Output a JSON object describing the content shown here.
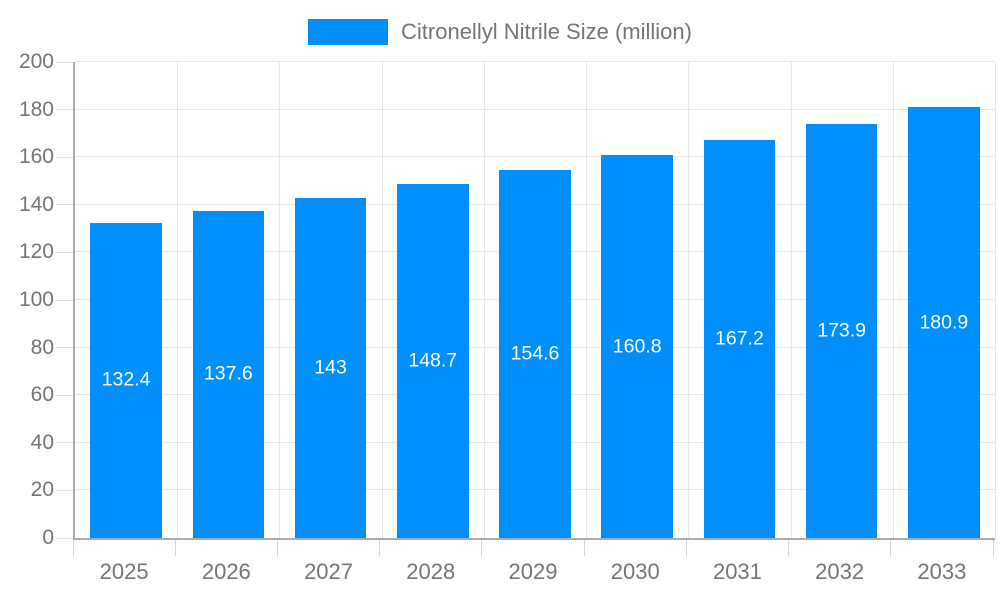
{
  "legend": {
    "label": "Citronellyl Nitrile Size (million)",
    "swatch_color": "#008FFB"
  },
  "chart_data": {
    "type": "bar",
    "title": "Citronellyl Nitrile Size (million)",
    "series_name": "Citronellyl Nitrile Size (million)",
    "categories": [
      "2025",
      "2026",
      "2027",
      "2028",
      "2029",
      "2030",
      "2031",
      "2032",
      "2033"
    ],
    "values": [
      132.4,
      137.6,
      143,
      148.7,
      154.6,
      160.8,
      167.2,
      173.9,
      180.9
    ],
    "xlabel": "",
    "ylabel": "",
    "ylim": [
      0,
      200
    ],
    "ytick_step": 20,
    "grid": true,
    "legend_position": "top",
    "bar_color": "#008FFB",
    "value_label_color": "#ffffff",
    "axis_text_color": "#757575",
    "gridline_color": "#e7e7e7",
    "axis_line_color": "#ababab"
  }
}
